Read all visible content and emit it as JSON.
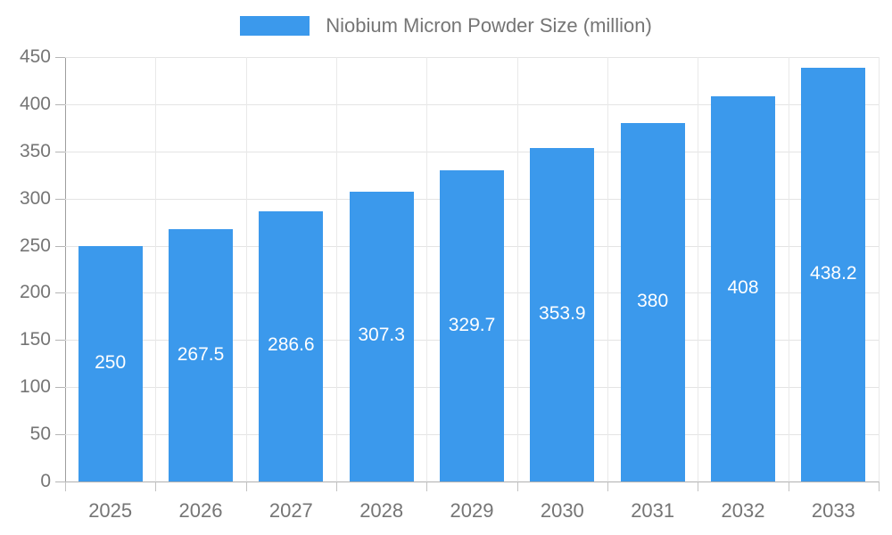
{
  "legend": {
    "label": "Niobium Micron Powder Size (million)"
  },
  "chart_data": {
    "type": "bar",
    "title": "Niobium Micron Powder Size (million)",
    "series_name": "Niobium Micron Powder Size (million)",
    "categories": [
      "2025",
      "2026",
      "2027",
      "2028",
      "2029",
      "2030",
      "2031",
      "2032",
      "2033"
    ],
    "values": [
      250,
      267.5,
      286.6,
      307.3,
      329.7,
      353.9,
      380,
      408,
      438.2
    ],
    "xlabel": "",
    "ylabel": "",
    "ylim": [
      0,
      450
    ],
    "y_ticks": [
      0,
      50,
      100,
      150,
      200,
      250,
      300,
      350,
      400,
      450
    ],
    "grid": true,
    "legend_position": "top-center",
    "value_labels": "inside-center",
    "bar_color": "#3B99EC",
    "value_label_color": "#FFFFFF",
    "axis_text_color": "#757575",
    "gridline_color": "#E4E4E4"
  }
}
